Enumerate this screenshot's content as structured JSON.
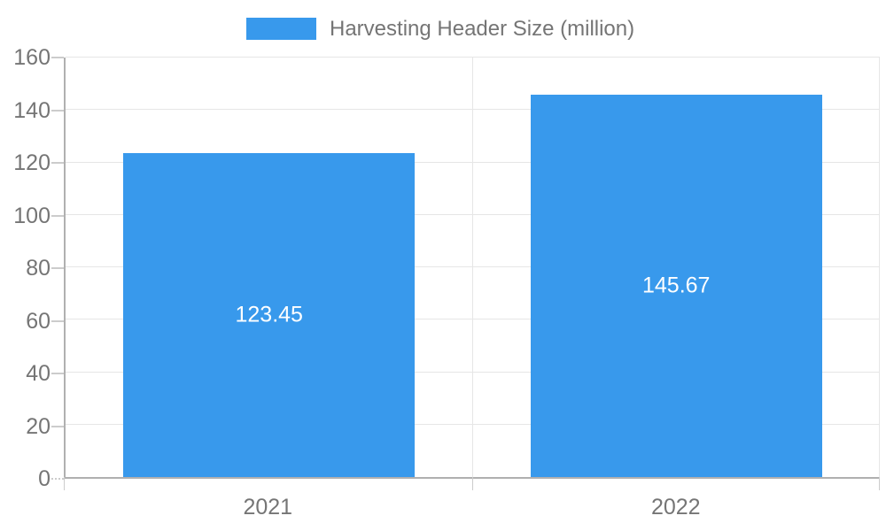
{
  "chart_data": {
    "type": "bar",
    "title": "Harvesting Header Size (million)",
    "series_name": "Harvesting Header Size (million)",
    "categories": [
      "2021",
      "2022"
    ],
    "values": [
      123.45,
      145.67
    ],
    "value_labels": [
      "123.45",
      "145.67"
    ],
    "xlabel": "",
    "ylabel": "",
    "ylim": [
      0,
      160
    ],
    "yticks": [
      0,
      20,
      40,
      60,
      80,
      100,
      120,
      140,
      160
    ],
    "grid": true,
    "legend_position": "top-center",
    "value_label_position": "inside-center",
    "colors": {
      "bar": "#3899ec",
      "axis_line": "#b0b0b0",
      "gridline": "#e6e6e6",
      "tick": "#cccccc",
      "label_text": "#757575",
      "value_text": "#ffffff",
      "background": "#ffffff"
    }
  }
}
